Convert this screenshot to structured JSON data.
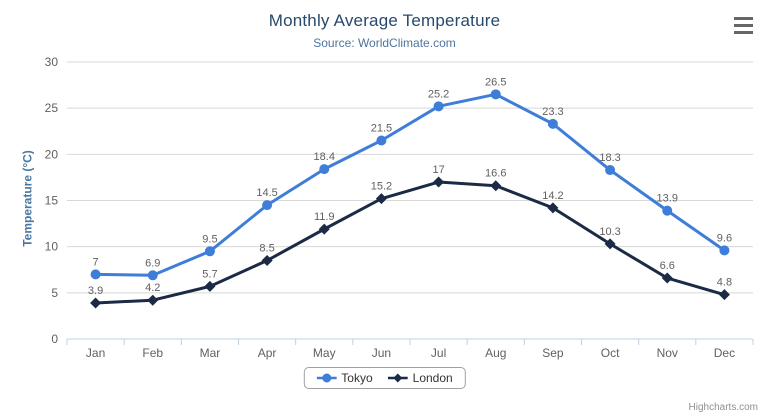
{
  "chart_data": {
    "type": "line",
    "title": "Monthly Average Temperature",
    "subtitle": "Source: WorldClimate.com",
    "ylabel": "Temperature (°C)",
    "xlabel": "",
    "ylim": [
      0,
      30
    ],
    "ytick_interval": 5,
    "grid": true,
    "legend_position": "bottom",
    "categories": [
      "Jan",
      "Feb",
      "Mar",
      "Apr",
      "May",
      "Jun",
      "Jul",
      "Aug",
      "Sep",
      "Oct",
      "Nov",
      "Dec"
    ],
    "series": [
      {
        "name": "Tokyo",
        "marker": "circle",
        "color": "#3E7DD8",
        "values": [
          7,
          6.9,
          9.5,
          14.5,
          18.4,
          21.5,
          25.2,
          26.5,
          23.3,
          18.3,
          13.9,
          9.6
        ]
      },
      {
        "name": "London",
        "marker": "diamond",
        "color": "#1B2A45",
        "values": [
          3.9,
          4.2,
          5.7,
          8.5,
          11.9,
          15.2,
          17,
          16.6,
          14.2,
          10.3,
          6.6,
          4.8
        ]
      }
    ]
  },
  "colors": {
    "title": "#27496D",
    "subtitle": "#4D759E",
    "axis_title": "#4876A4",
    "tick_label": "#606060",
    "data_label": "#606060",
    "grid_line": "#D8D8D8",
    "axis_line": "#C0D0E0",
    "legend_border": "#A0A0A0",
    "legend_text": "#333333",
    "credits": "#909090",
    "menu_icon": "#666666",
    "background": "#FFFFFF"
  },
  "credits": {
    "label": "Highcharts.com"
  }
}
